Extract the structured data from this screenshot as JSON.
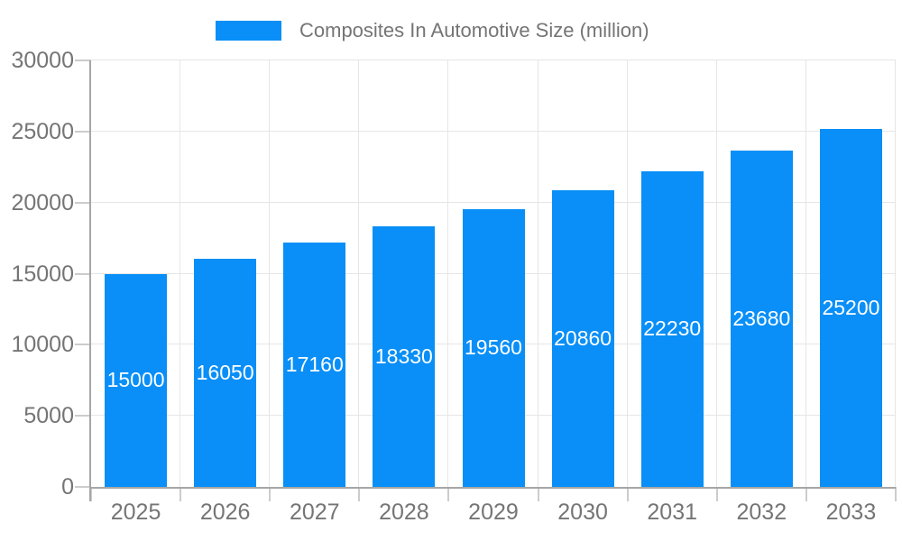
{
  "legend": {
    "label": "Composites In Automotive Size (million)"
  },
  "colors": {
    "bar": "#098ff7",
    "axis_text": "#757575",
    "axis_line": "#a6a6a6",
    "gridline": "#e6e6e6",
    "tick": "#cccccc",
    "bar_label_text": "#ffffff",
    "background": "#ffffff"
  },
  "chart_data": {
    "type": "bar",
    "title": "Composites In Automotive Size (million)",
    "categories": [
      "2025",
      "2026",
      "2027",
      "2028",
      "2029",
      "2030",
      "2031",
      "2032",
      "2033"
    ],
    "values": [
      15000,
      16050,
      17160,
      18330,
      19560,
      20860,
      22230,
      23680,
      25200
    ],
    "xlabel": "",
    "ylabel": "",
    "ylim": [
      0,
      30000
    ],
    "yticks": [
      0,
      5000,
      10000,
      15000,
      20000,
      25000,
      30000
    ],
    "grid": true,
    "legend_position": "top",
    "bar_labels": "inside-center-white"
  }
}
